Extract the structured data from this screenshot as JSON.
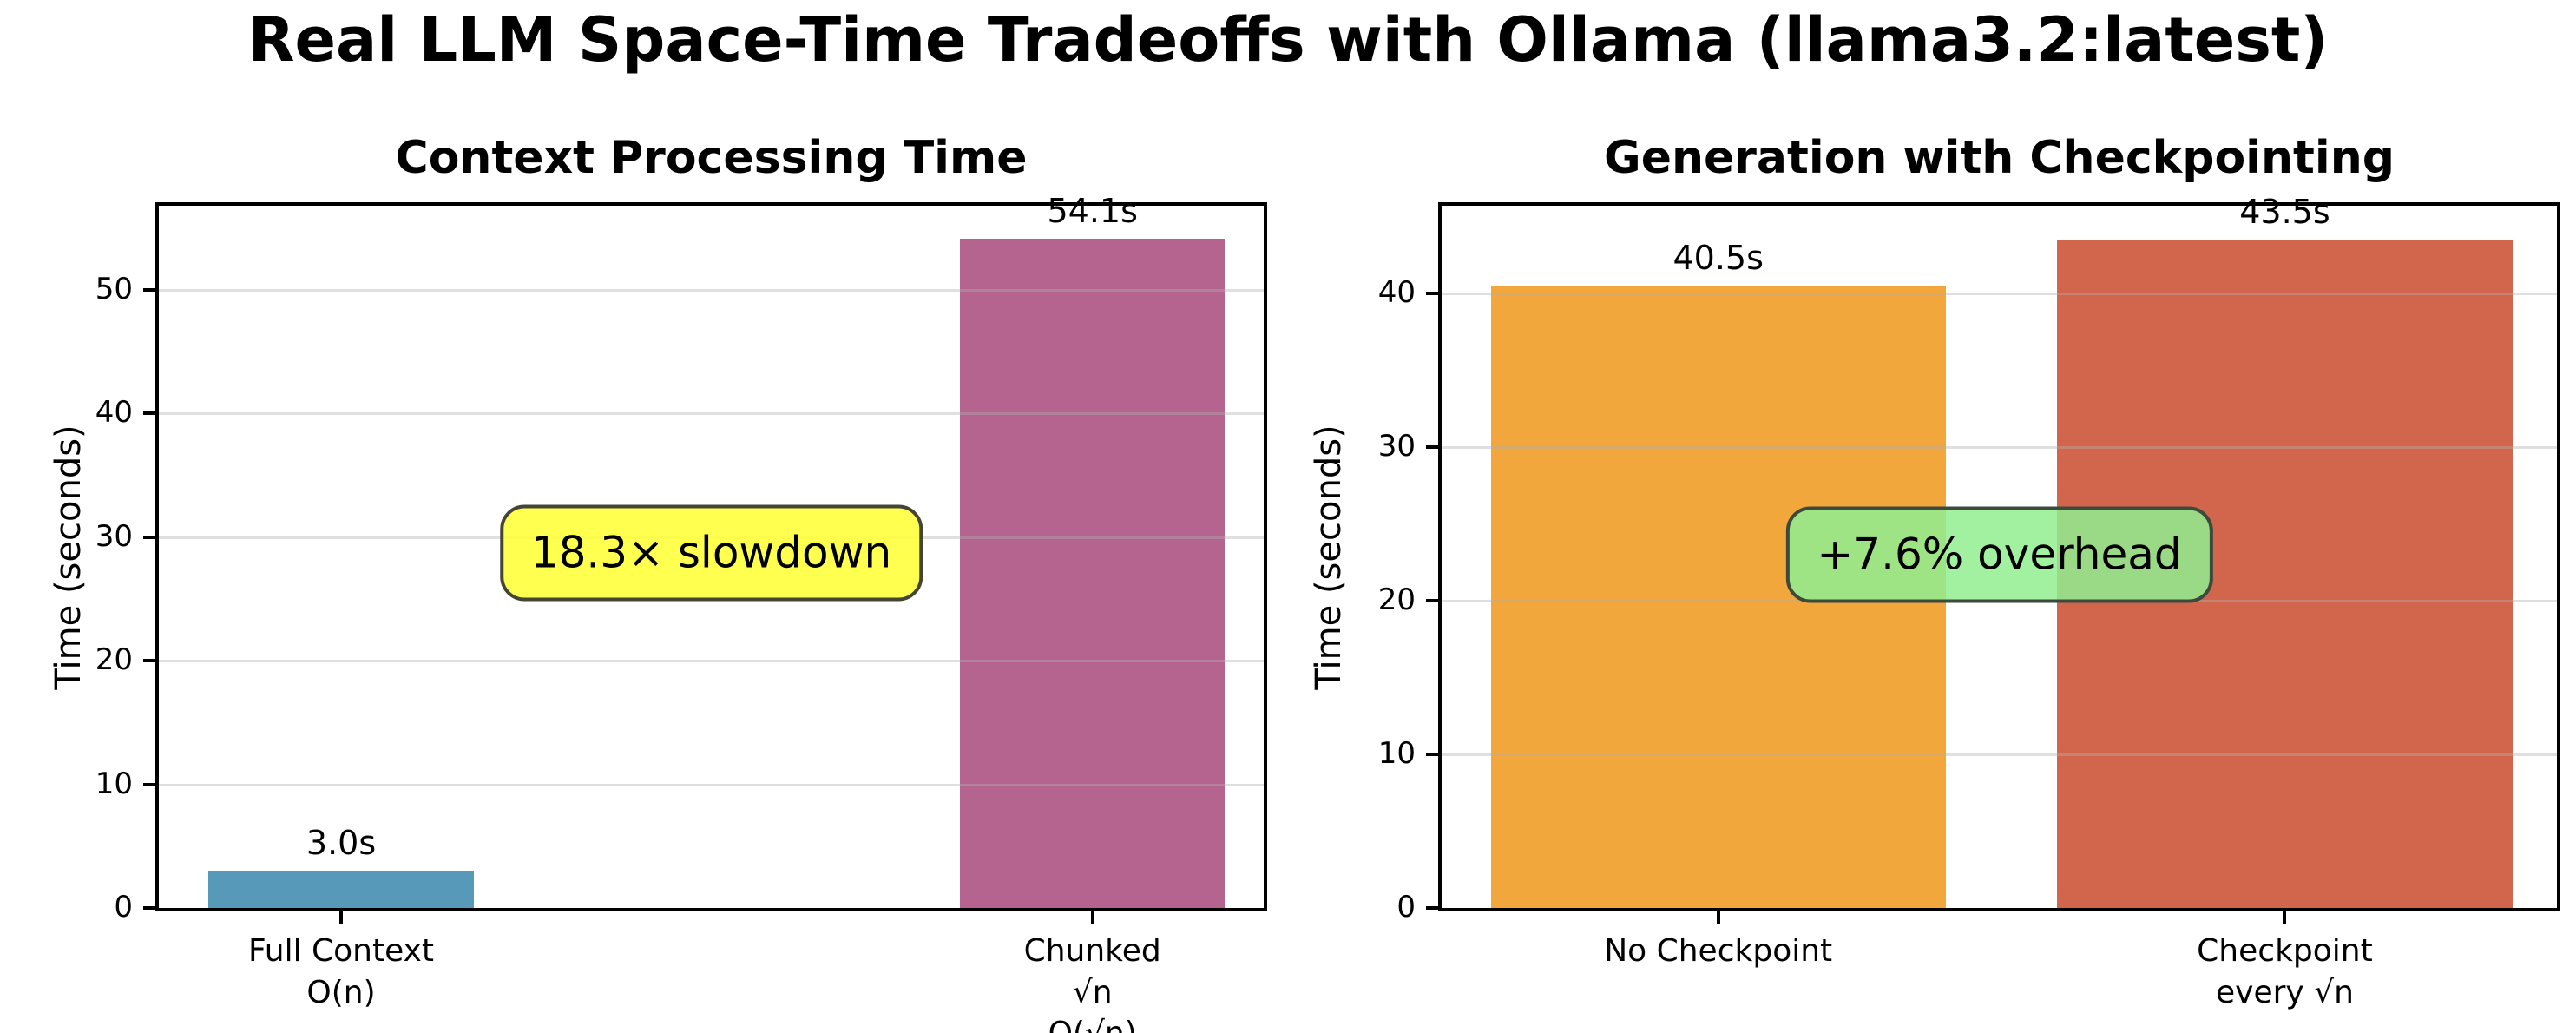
{
  "figure": {
    "title": "Real LLM Space-Time Tradeoffs with Ollama (llama3.2:latest)",
    "background": "#ffffff"
  },
  "chart_data": [
    {
      "type": "bar",
      "title": "Context Processing Time",
      "ylabel": "Time (seconds)",
      "categories": [
        "Full Context\nO(n)",
        "Chunked √n\nO(√n)"
      ],
      "values": [
        3.0,
        54.1
      ],
      "bar_labels": [
        "3.0s",
        "54.1s"
      ],
      "bar_colors": [
        "#5799b9",
        "#b4648f"
      ],
      "yticks": [
        0,
        10,
        20,
        30,
        40,
        50
      ],
      "ylim": [
        0,
        56.8
      ],
      "grid": true,
      "legend": "none",
      "annotation": {
        "text": "18.3× slowdown",
        "bg": "#ffff3c",
        "bg_alpha": 0.9,
        "border_color": "#454535"
      }
    },
    {
      "type": "bar",
      "title": "Generation with Checkpointing",
      "ylabel": "Time (seconds)",
      "categories": [
        "No Checkpoint",
        "Checkpoint\nevery √n"
      ],
      "values": [
        40.5,
        43.5
      ],
      "bar_labels": [
        "40.5s",
        "43.5s"
      ],
      "bar_colors": [
        "#f2a73c",
        "#d2664c"
      ],
      "yticks": [
        0,
        10,
        20,
        30,
        40
      ],
      "ylim": [
        0,
        45.7
      ],
      "grid": true,
      "legend": "none",
      "annotation": {
        "text": "+7.6% overhead",
        "bg": "#90ee90",
        "bg_alpha": 0.85,
        "border_color": "#3c4a3c"
      }
    }
  ]
}
